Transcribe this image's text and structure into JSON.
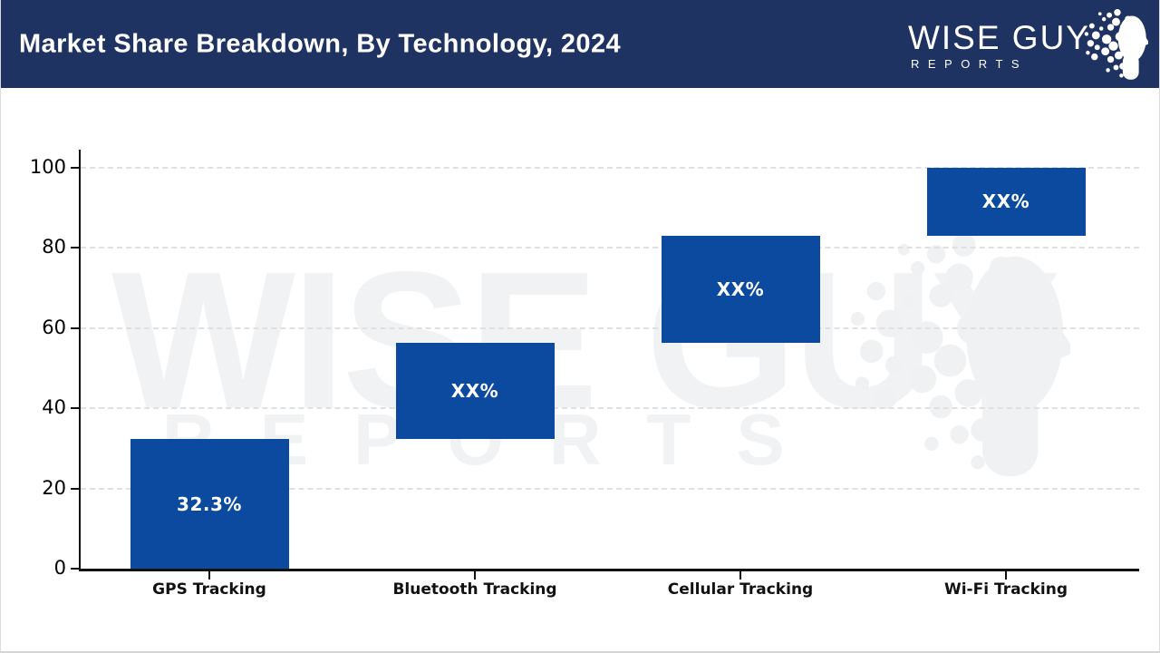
{
  "header": {
    "title": "Market Share Breakdown, By Technology, 2024",
    "logo": {
      "line1": "WISE GUY",
      "line2": "REPORTS"
    }
  },
  "watermark": {
    "line1": "WISE GUY",
    "line2": "REPORTS"
  },
  "chart_data": {
    "type": "bar",
    "subtype": "waterfall",
    "title": "Market Share Breakdown, By Technology, 2024",
    "categories": [
      "GPS Tracking",
      "Bluetooth Tracking",
      "Cellular Tracking",
      "Wi-Fi Tracking"
    ],
    "segments": [
      {
        "category": "GPS Tracking",
        "start": 0,
        "end": 32.3,
        "label": "32.3%"
      },
      {
        "category": "Bluetooth Tracking",
        "start": 32.3,
        "end": 56.3,
        "label": "XX%"
      },
      {
        "category": "Cellular Tracking",
        "start": 56.3,
        "end": 83,
        "label": "XX%"
      },
      {
        "category": "Wi-Fi Tracking",
        "start": 83,
        "end": 100,
        "label": "XX%"
      }
    ],
    "y_ticks": [
      0,
      20,
      40,
      60,
      80,
      100
    ],
    "ylim": [
      0,
      104.5
    ],
    "xlabel": "",
    "ylabel": "",
    "grid": "horizontal dashed",
    "legend": "none",
    "bar_color": "#0b4a9e",
    "bar_label_color": "#ffffff"
  },
  "colors": {
    "header_bg": "#1e3361",
    "bar": "#0b4a9e",
    "grid": "#e0e0e0",
    "axis": "#111111",
    "watermark": "#f1f2f4"
  }
}
